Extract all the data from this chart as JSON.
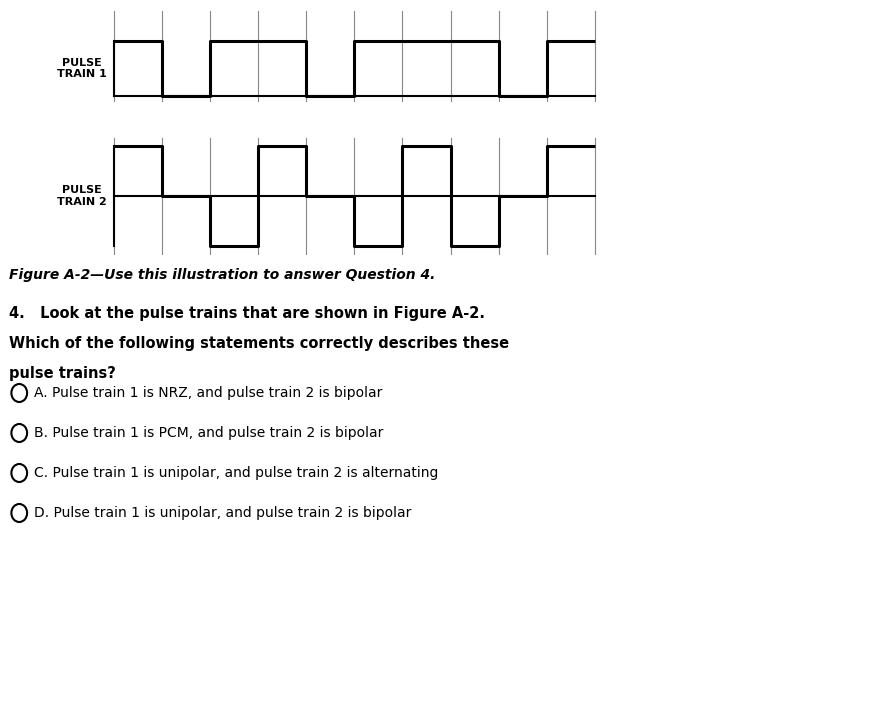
{
  "bits": [
    1,
    0,
    1,
    1,
    0,
    1,
    1,
    1,
    0,
    1
  ],
  "bg_color": "#ffffff",
  "line_color": "#000000",
  "grid_color": "#555555",
  "title_label": "Figure A-2—Use this illustration to answer Question 4.",
  "pulse1_label": "PULSE\nTRAIN 1",
  "pulse2_label": "PULSE\nTRAIN 2",
  "question_line1": "4.   Look at the pulse trains that are shown in Figure A-2.",
  "question_line2": "Which of the following statements correctly describes these",
  "question_line3": "pulse trains?",
  "options": [
    "A. Pulse train 1 is NRZ, and pulse train 2 is bipolar",
    "B. Pulse train 1 is PCM, and pulse train 2 is bipolar",
    "C. Pulse train 1 is unipolar, and pulse train 2 is alternating",
    "D. Pulse train 1 is unipolar, and pulse train 2 is bipolar"
  ],
  "right_panel_color": "#c0c0c0",
  "n_bits": 10
}
